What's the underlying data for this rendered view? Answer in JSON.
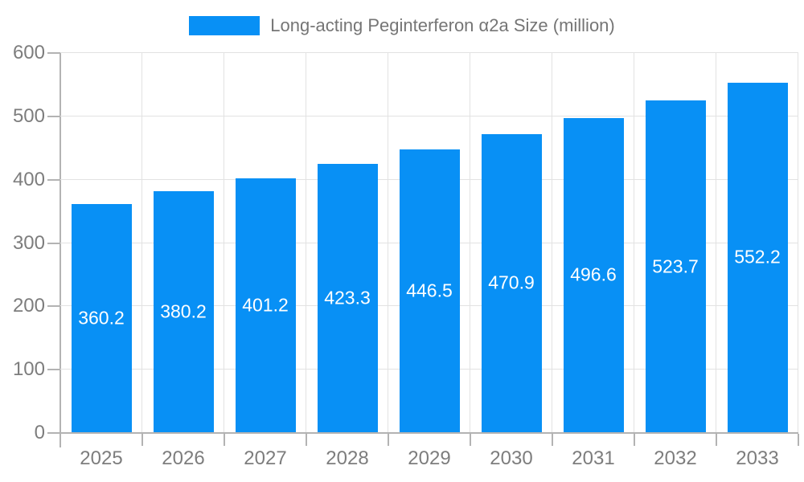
{
  "legend": {
    "label": "Long-acting Peginterferon α2a Size (million)"
  },
  "colors": {
    "bar": "#0890f5",
    "grid": "#e2e2e2",
    "axis": "#b3b3b3",
    "axis_label": "#7d7d7d",
    "bar_label": "#ffffff",
    "legend_text": "#757575"
  },
  "chart_data": {
    "type": "bar",
    "title": "Long-acting Peginterferon α2a Size (million)",
    "categories": [
      "2025",
      "2026",
      "2027",
      "2028",
      "2029",
      "2030",
      "2031",
      "2032",
      "2033"
    ],
    "values": [
      360.2,
      380.2,
      401.2,
      423.3,
      446.5,
      470.9,
      496.6,
      523.7,
      552.2
    ],
    "xlabel": "",
    "ylabel": "",
    "ylim": [
      0,
      600
    ],
    "yticks": [
      0,
      100,
      200,
      300,
      400,
      500,
      600
    ],
    "grid": true,
    "legend_position": "top",
    "value_labels": "inside-center"
  }
}
